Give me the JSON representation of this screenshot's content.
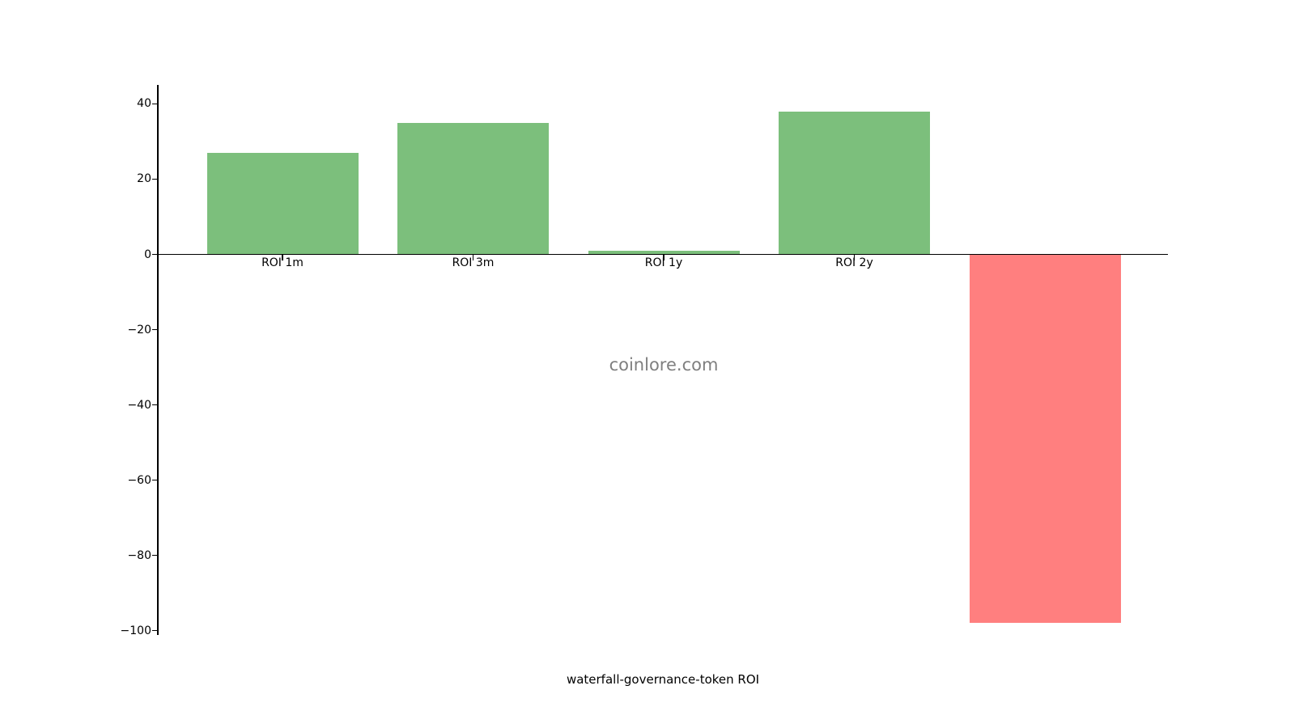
{
  "chart": {
    "title": "waterfall-governance-token ROI",
    "watermark": "coinlore.com"
  },
  "chart_data": {
    "type": "bar",
    "title": "waterfall-governance-token ROI",
    "watermark": "coinlore.com",
    "categories": [
      "ROI 1m",
      "ROI 3m",
      "ROI 1y",
      "ROI 2y",
      ""
    ],
    "values": [
      27,
      35,
      1,
      38,
      -98
    ],
    "bar_colors": [
      "#7cbf7c",
      "#7cbf7c",
      "#7cbf7c",
      "#7cbf7c",
      "#ff7f7f"
    ],
    "positive_color": "#7cbf7c",
    "negative_color": "#ff7f7f",
    "xlabel": "waterfall-governance-token ROI",
    "ylabel": "",
    "yticks": [
      40,
      20,
      0,
      -20,
      -40,
      -60,
      -80,
      -100
    ],
    "ytick_labels": [
      "40",
      "20",
      "0",
      "−20",
      "−40",
      "−60",
      "−80",
      "−100"
    ],
    "ylim": [
      -101,
      45
    ],
    "grid": false,
    "legend": null,
    "axis_color": "#000000",
    "text_color": "#000000",
    "watermark_color": "#7f7f7f",
    "background_color": "#ffffff"
  }
}
